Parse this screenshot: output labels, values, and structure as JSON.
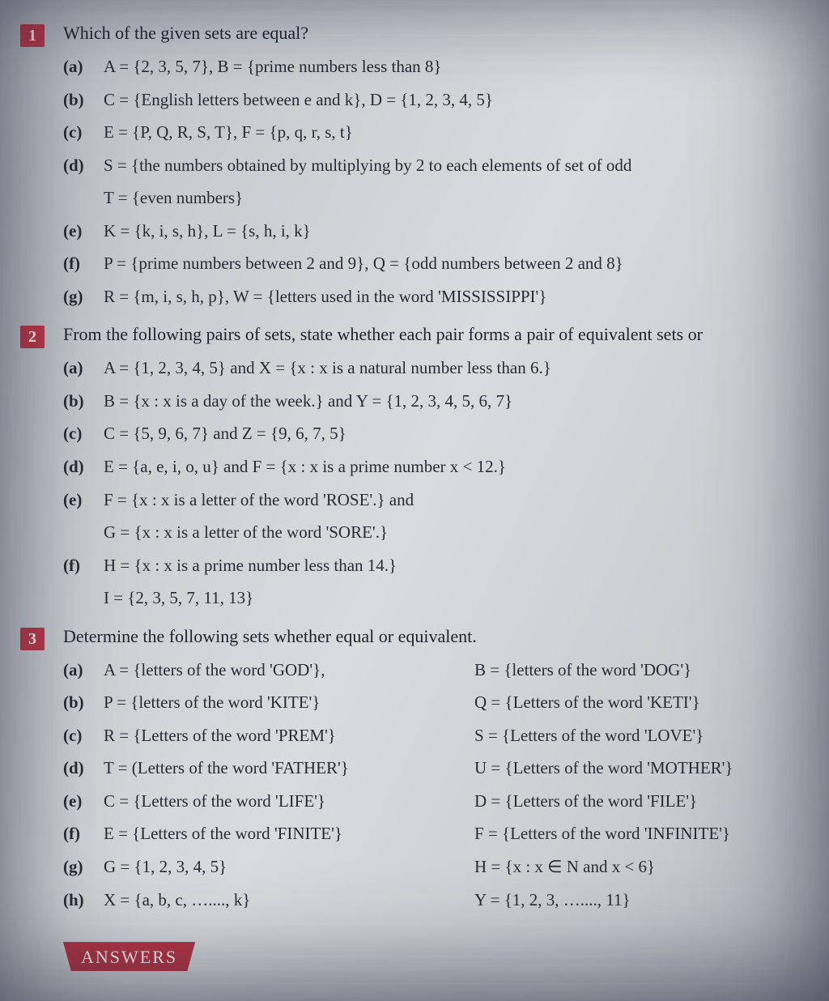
{
  "colors": {
    "badge_bg": "#c0394a",
    "badge_fg": "#ffffff",
    "text": "#2a2a35",
    "page_bg_start": "#b8bcc2",
    "page_bg_end": "#b0b4ba"
  },
  "typography": {
    "body_fontsize_pt": 16,
    "question_fontsize_pt": 17,
    "font_family": "Times New Roman"
  },
  "q1": {
    "num": "1",
    "text": "Which of the given sets are equal?",
    "items": {
      "a": {
        "label": "(a)",
        "text": "A = {2, 3, 5, 7}, B = {prime numbers less than 8}"
      },
      "b": {
        "label": "(b)",
        "text": "C = {English letters between e and k}, D = {1, 2, 3, 4, 5}"
      },
      "c": {
        "label": "(c)",
        "text": "E = {P, Q, R, S, T}, F = {p, q, r, s, t}"
      },
      "d": {
        "label": "(d)",
        "text": "S = {the numbers obtained by multiplying by 2 to each elements of set of odd"
      },
      "d2": "T = {even numbers}",
      "e": {
        "label": "(e)",
        "text": "K = {k, i, s, h}, L = {s, h, i, k}"
      },
      "f": {
        "label": "(f)",
        "text": "P = {prime numbers between 2 and 9}, Q = {odd numbers between 2 and 8}"
      },
      "g": {
        "label": "(g)",
        "text": "R = {m, i, s, h, p}, W = {letters used in the word 'MISSISSIPPI'}"
      }
    }
  },
  "q2": {
    "num": "2",
    "text": "From the following pairs of sets, state whether each pair forms a pair of equivalent sets or",
    "items": {
      "a": {
        "label": "(a)",
        "text": "A = {1, 2, 3, 4, 5} and X = {x : x is a natural number less than 6.}"
      },
      "b": {
        "label": "(b)",
        "text": "B = {x : x is a day of the week.} and Y = {1, 2, 3, 4, 5, 6, 7}"
      },
      "c": {
        "label": "(c)",
        "text": "C = {5, 9, 6, 7} and Z = {9, 6, 7, 5}"
      },
      "d": {
        "label": "(d)",
        "text": "E = {a, e, i, o, u} and F = {x : x is a prime number x < 12.}"
      },
      "e": {
        "label": "(e)",
        "text": "F = {x : x is a letter of the word 'ROSE'.} and"
      },
      "e2": "G = {x : x is a letter of the word 'SORE'.}",
      "f": {
        "label": "(f)",
        "text": "H = {x : x is a prime number less than 14.}"
      },
      "f2": "I = {2, 3, 5, 7, 11, 13}"
    }
  },
  "q3": {
    "num": "3",
    "text": "Determine the following sets whether equal or equivalent.",
    "items": {
      "a": {
        "label": "(a)",
        "left": "A = {letters of the word 'GOD'},",
        "right": "B = {letters of the word 'DOG'}"
      },
      "b": {
        "label": "(b)",
        "left": "P = {letters of the word 'KITE'}",
        "right": "Q = {Letters of the word 'KETI'}"
      },
      "c": {
        "label": "(c)",
        "left": "R = {Letters of the word 'PREM'}",
        "right": "S = {Letters of the word 'LOVE'}"
      },
      "d": {
        "label": "(d)",
        "left": "T = (Letters of the word 'FATHER'}",
        "right": "U = {Letters of the word 'MOTHER'}"
      },
      "e": {
        "label": "(e)",
        "left": "C = {Letters of the word 'LIFE'}",
        "right": "D = {Letters of the word 'FILE'}"
      },
      "f": {
        "label": "(f)",
        "left": "E = {Letters of the word 'FINITE'}",
        "right": "F = {Letters of the word 'INFINITE'}"
      },
      "g": {
        "label": "(g)",
        "left": "G = {1, 2, 3, 4, 5}",
        "right": "H = {x : x ∈ N and x < 6}"
      },
      "h": {
        "label": "(h)",
        "left": "X = {a, b, c, …...., k}",
        "right": "Y = {1, 2, 3, …...., 11}"
      }
    }
  },
  "answers_label": "ANSWERS"
}
